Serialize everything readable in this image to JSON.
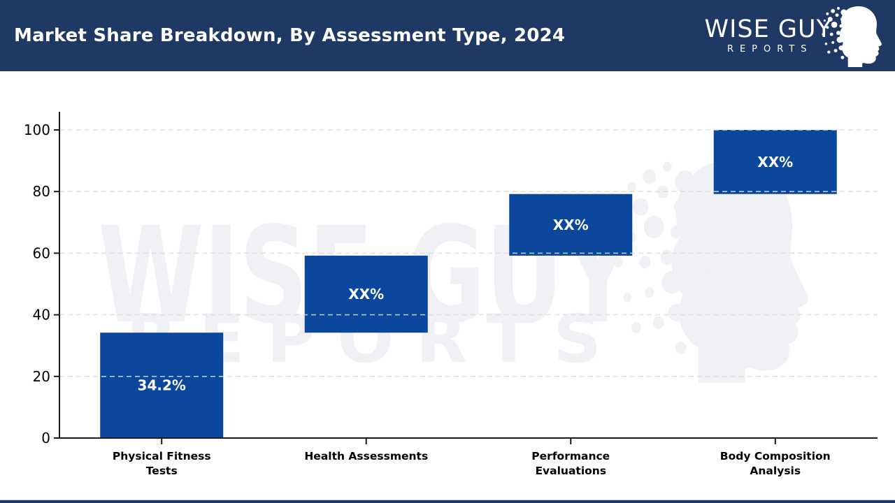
{
  "header": {
    "title": "Market Share Breakdown, By Assessment Type, 2024",
    "bg_color": "#203864",
    "logo": {
      "wordmark": "WISE GUY",
      "subtext": "REPORTS"
    }
  },
  "watermark": {
    "line1": "WISE GUY",
    "line2": "REPORTS"
  },
  "chart_data": {
    "type": "bar",
    "subtype": "waterfall-floating-segments",
    "title": "Market Share Breakdown, By Assessment Type, 2024",
    "categories": [
      "Physical Fitness Tests",
      "Health Assessments",
      "Performance Evaluations",
      "Body Composition Analysis"
    ],
    "category_label_lines": [
      [
        "Physical Fitness",
        "Tests"
      ],
      [
        "Health Assessments"
      ],
      [
        "Performance",
        "Evaluations"
      ],
      [
        "Body Composition",
        "Analysis"
      ]
    ],
    "segments": [
      {
        "category": "Physical Fitness Tests",
        "start": 0,
        "end": 34.2,
        "label": "34.2%"
      },
      {
        "category": "Health Assessments",
        "start": 34.2,
        "end": 59.2,
        "label": "XX%"
      },
      {
        "category": "Performance Evaluations",
        "start": 59.2,
        "end": 79.2,
        "label": "XX%"
      },
      {
        "category": "Body Composition Analysis",
        "start": 79.2,
        "end": 100,
        "label": "XX%"
      }
    ],
    "xlabel": "",
    "ylabel": "",
    "ylim": [
      0,
      100
    ],
    "yticks": [
      0,
      20,
      40,
      60,
      80,
      100
    ],
    "grid": "horizontal-dashed",
    "legend": "none",
    "colors": {
      "bar": "#0a479d",
      "bar_label": "#ffffff",
      "grid": "#dcdcdc",
      "grid_over_bar_opacity": 0.85,
      "axis": "#1a1a1a",
      "tick_label": "#000000",
      "watermark": "#f0f1f4"
    }
  }
}
